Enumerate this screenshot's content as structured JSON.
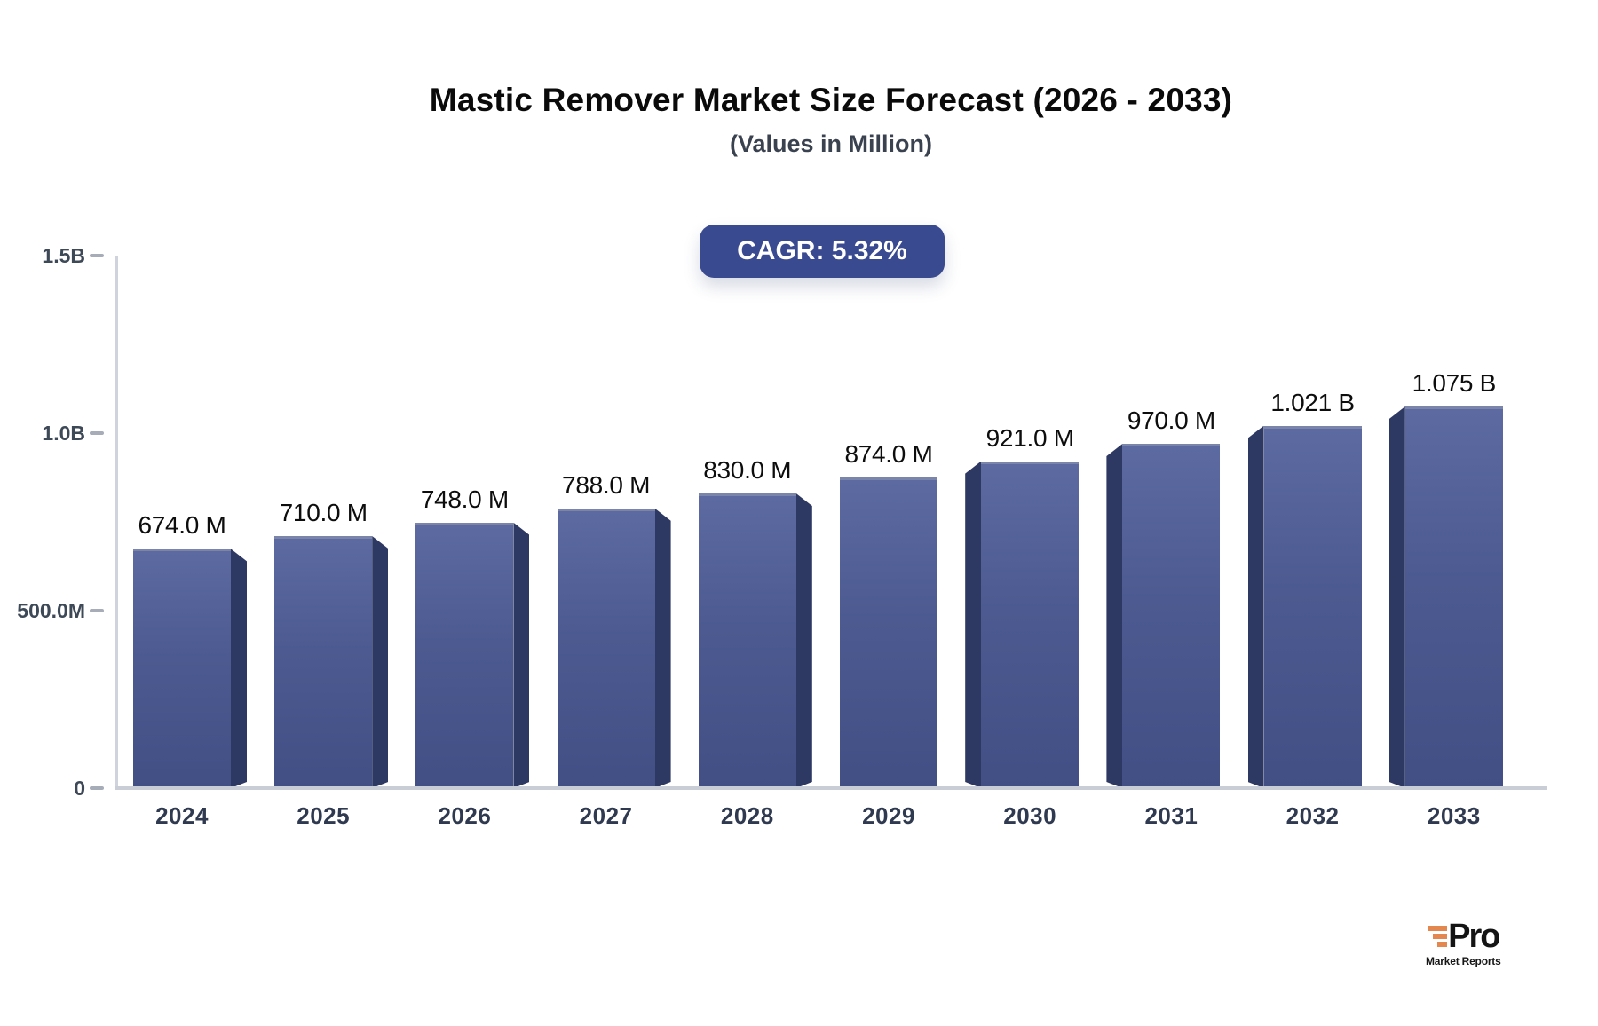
{
  "header": {
    "title": "Mastic Remover Market Size Forecast (2026 - 2033)",
    "subtitle": "(Values in Million)",
    "cagr_label": "CAGR: 5.32%"
  },
  "chart_data": {
    "type": "bar",
    "title": "Mastic Remover Market Size Forecast (2026 - 2033)",
    "subtitle": "(Values in Million)",
    "cagr_percent": 5.32,
    "categories": [
      "2024",
      "2025",
      "2026",
      "2027",
      "2028",
      "2029",
      "2030",
      "2031",
      "2032",
      "2033"
    ],
    "values_millions": [
      674.0,
      710.0,
      748.0,
      788.0,
      830.0,
      874.0,
      921.0,
      970.0,
      1021.0,
      1075.0
    ],
    "value_labels": [
      "674.0 M",
      "710.0 M",
      "748.0 M",
      "788.0 M",
      "830.0 M",
      "874.0 M",
      "921.0 M",
      "970.0 M",
      "1.021 B",
      "1.075 B"
    ],
    "xlabel": "",
    "ylabel": "",
    "ylim_millions": [
      0,
      1500
    ],
    "yticks": [
      {
        "label": "0",
        "value": 0
      },
      {
        "label": "500.0M",
        "value": 500
      },
      {
        "label": "1.0B",
        "value": 1000
      },
      {
        "label": "1.5B",
        "value": 1500
      }
    ],
    "grid": false,
    "legend": "none",
    "colors": {
      "bar_face_top": "#5d6aa2",
      "bar_face_mid": "#4c5a91",
      "bar_face_bottom": "#414f85",
      "bar_side": "#2e3963",
      "bar_top_highlight": "#7b84a9",
      "axis_line": "#cfd3db",
      "baseline": "#c9ced6",
      "tick_dash": "#a6adb8",
      "value_text": "#0d0d0d",
      "ytick_text": "#3e4958",
      "xtick_text": "#2f3a50",
      "badge_bg": "#3a4a90",
      "badge_text": "#ffffff"
    }
  },
  "logo": {
    "brand": "Pro",
    "tagline": "Market Reports",
    "accent_color": "#e4874f"
  }
}
